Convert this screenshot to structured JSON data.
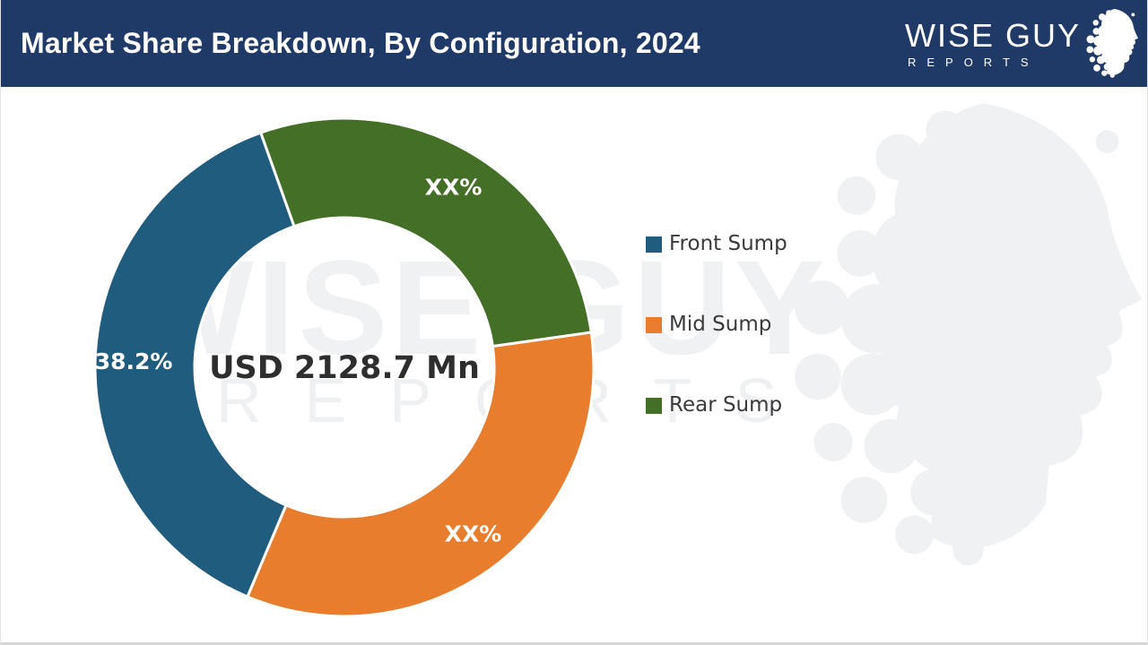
{
  "header": {
    "title": "Market Share Breakdown, By Configuration, 2024",
    "logo": {
      "title": "WISE GUY",
      "subtitle": "REPORTS"
    }
  },
  "watermark": {
    "title": "WISE GUY",
    "subtitle": "REPORTS"
  },
  "chart_data": {
    "type": "pie",
    "variant": "donut",
    "title": "Market Share Breakdown, By Configuration, 2024",
    "categories": [
      "Front Sump",
      "Mid Sump",
      "Rear Sump"
    ],
    "values": [
      38.2,
      33.6,
      28.2
    ],
    "slice_labels": [
      "38.2%",
      "XX%",
      "XX%"
    ],
    "colors": [
      "#205C7D",
      "#E87D2E",
      "#446F26"
    ],
    "center_label": "USD 2128.7 Mn",
    "start_angle_deg": 109.6,
    "direction": "counterclockwise",
    "legend": {
      "position": "right",
      "items": [
        "Front Sump",
        "Mid Sump",
        "Rear Sump"
      ]
    }
  }
}
